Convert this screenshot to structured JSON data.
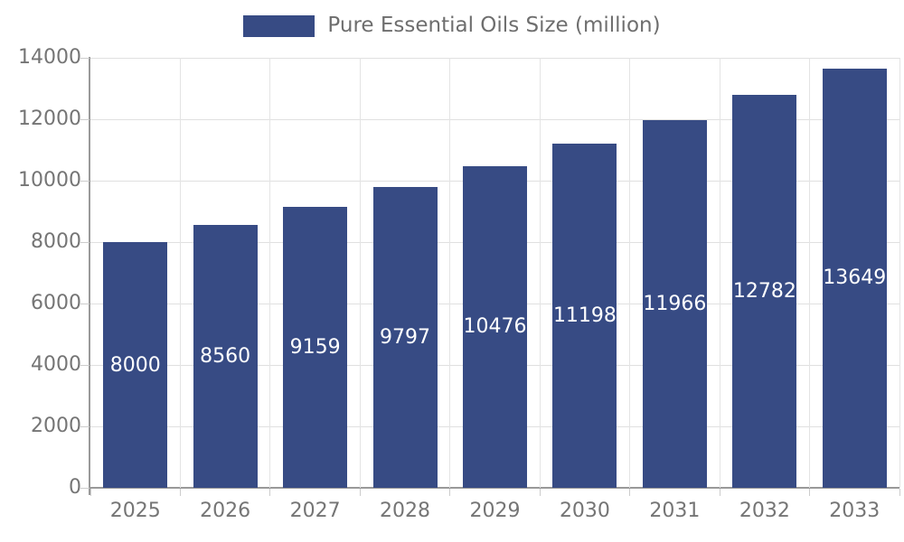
{
  "legend": {
    "label": "Pure Essential Oils Size (million)"
  },
  "colors": {
    "bar": "#374b84",
    "hgrid": "#e0e0e0",
    "vgrid": "#e4e4e4",
    "axis_line": "#999999",
    "tick_mark": "#cccccc",
    "axis_text": "#757575",
    "legend_text": "#6e6e6e",
    "value_label": "#ffffff",
    "background": "#ffffff"
  },
  "chart_data": {
    "type": "bar",
    "title": "",
    "xlabel": "",
    "ylabel": "",
    "categories": [
      "2025",
      "2026",
      "2027",
      "2028",
      "2029",
      "2030",
      "2031",
      "2032",
      "2033"
    ],
    "series": [
      {
        "name": "Pure Essential Oils Size (million)",
        "values": [
          8000,
          8560,
          9159,
          9797,
          10476,
          11198,
          11966,
          12782,
          13649
        ]
      }
    ],
    "value_labels": [
      "8000",
      "8560",
      "9159",
      "9797",
      "10476",
      "11198",
      "11966",
      "12782",
      "13649"
    ],
    "value_label_position": "inside-center",
    "ylim": [
      0,
      14000
    ],
    "ytick_step": 2000,
    "yticks": [
      "0",
      "2000",
      "4000",
      "6000",
      "8000",
      "10000",
      "12000",
      "14000"
    ],
    "grid": true,
    "legend_position": "top-center"
  }
}
